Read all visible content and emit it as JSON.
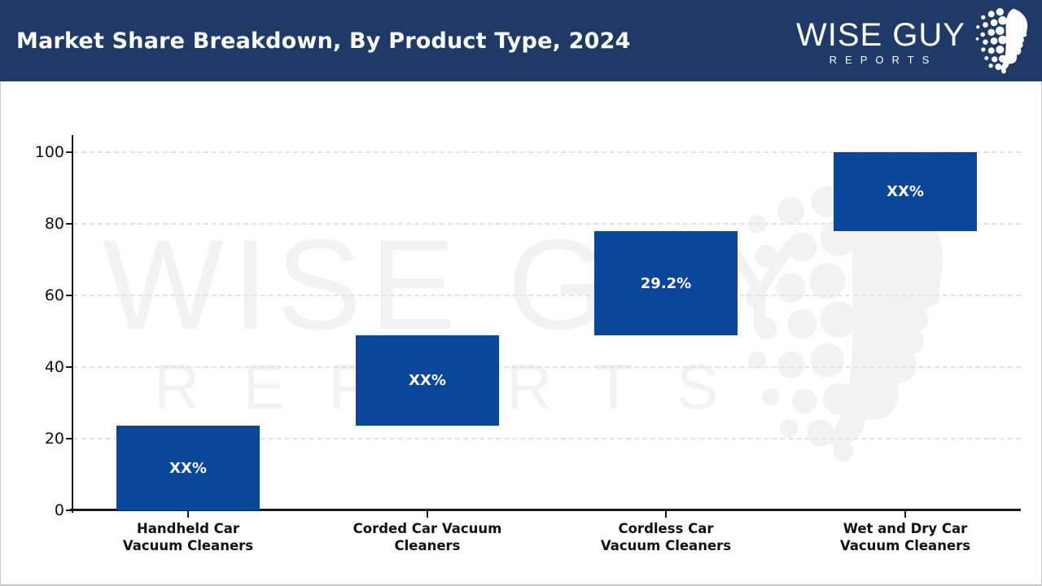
{
  "header": {
    "title": "Market Share Breakdown, By Product Type, 2024",
    "logo": {
      "wordmark": "WISE GUY",
      "subtitle": "REPORTS"
    }
  },
  "watermark": {
    "wordmark": "WISE GUY",
    "subtitle": "REPORTS"
  },
  "colors": {
    "header_bg": "#1f3a67",
    "bar": "#0a4699",
    "bar_label": "#ffffff",
    "axis": "#1a1a1a",
    "tick_label": "#111111",
    "gridline": "#e2e2e2",
    "watermark": "#f2f2f2"
  },
  "chart_data": {
    "type": "bar",
    "subtype": "waterfall-stacked-percentage",
    "title": "Market Share Breakdown, By Product Type, 2024",
    "categories": [
      "Handheld Car Vacuum Cleaners",
      "Corded Car Vacuum Cleaners",
      "Cordless Car Vacuum Cleaners",
      "Wet and Dry Car Vacuum Cleaners"
    ],
    "category_label_lines": [
      [
        "Handheld Car",
        "Vacuum Cleaners"
      ],
      [
        "Corded Car Vacuum",
        "Cleaners"
      ],
      [
        "Cordless Car",
        "Vacuum Cleaners"
      ],
      [
        "Wet and Dry Car",
        "Vacuum Cleaners"
      ]
    ],
    "segments": [
      {
        "category": "Handheld Car Vacuum Cleaners",
        "start": 0,
        "end": 23.6,
        "value": 23.6,
        "value_label": "XX%"
      },
      {
        "category": "Corded Car Vacuum Cleaners",
        "start": 23.6,
        "end": 48.8,
        "value": 25.2,
        "value_label": "XX%"
      },
      {
        "category": "Cordless Car Vacuum Cleaners",
        "start": 48.8,
        "end": 78.0,
        "value": 29.2,
        "value_label": "29.2%"
      },
      {
        "category": "Wet and Dry Car Vacuum Cleaners",
        "start": 78.0,
        "end": 100,
        "value": 22.0,
        "value_label": "XX%"
      }
    ],
    "xlabel": "",
    "ylabel": "",
    "ylim": [
      0,
      100
    ],
    "yticks": [
      0,
      20,
      40,
      60,
      80,
      100
    ],
    "ytick_labels": [
      "0",
      "20",
      "40",
      "60",
      "80",
      "100"
    ],
    "grid": "horizontal-dashed",
    "legend": "none"
  }
}
